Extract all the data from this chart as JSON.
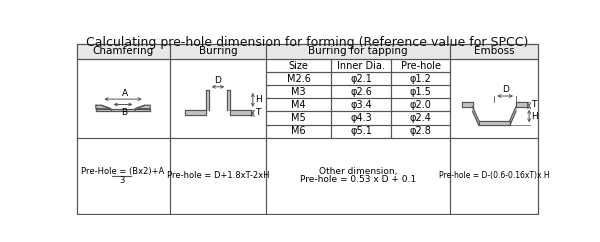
{
  "title": "Calculating pre-hole dimension for forming (Reference value for SPCC)",
  "title_fontsize": 9.0,
  "bg_color": "#ffffff",
  "header_bg": "#e8e8e8",
  "border_color": "#555555",
  "font_color": "#111111",
  "tapping_data": [
    [
      "M2.6",
      "φ2.1",
      "φ1.2"
    ],
    [
      "M3",
      "φ2.6",
      "φ1.5"
    ],
    [
      "M4",
      "φ3.4",
      "φ2.0"
    ],
    [
      "M5",
      "φ4.3",
      "φ2.4"
    ],
    [
      "M6",
      "φ5.1",
      "φ2.8"
    ]
  ],
  "formula_chamfer_top": "Pre-Hole = (Bx2)+A",
  "formula_chamfer_bot": "3",
  "formula_burring": "Pre-hole = D+1.8xT-2xH",
  "formula_tapping_1": "Other dimension,",
  "formula_tapping_2": "Pre-hole = 0.53 x D + 0.1",
  "formula_emboss": "Pre-hole = D-(0.6-0.16xT)x H"
}
